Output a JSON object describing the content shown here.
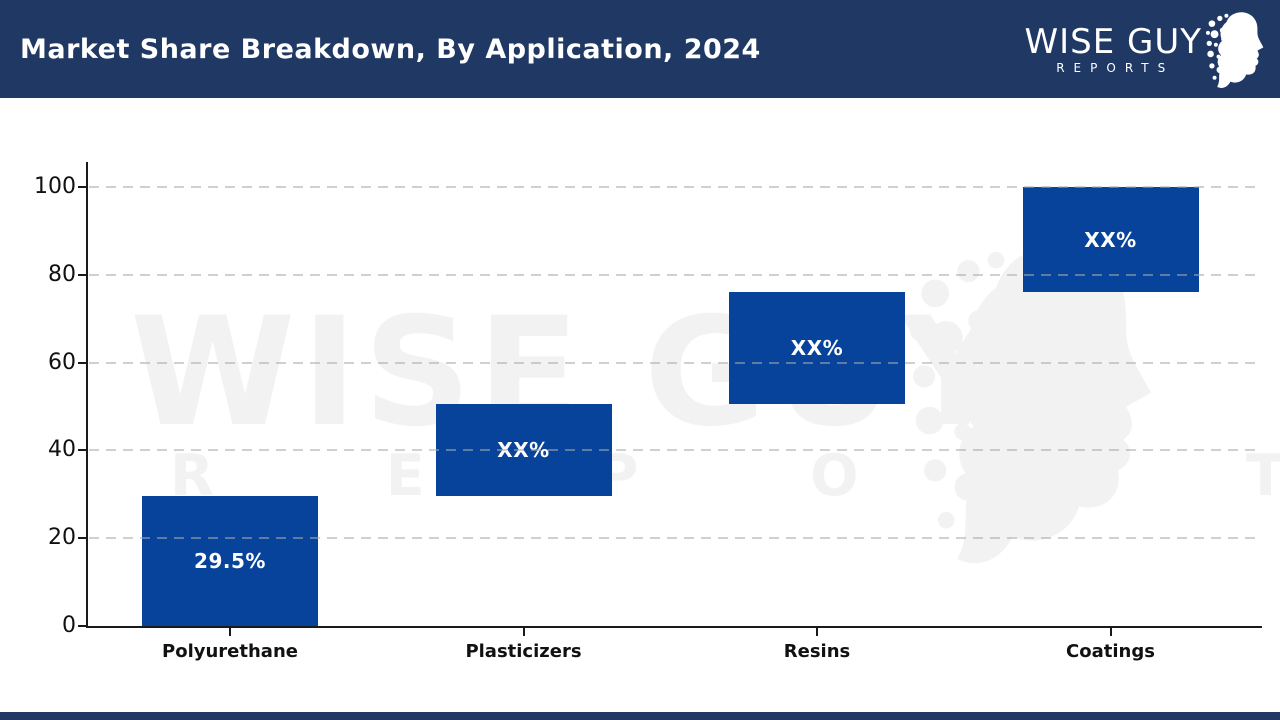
{
  "header": {
    "title": "Market Share Breakdown, By Application, 2024",
    "logo": {
      "line1": "WISE GUY",
      "line2": "REPORTS"
    }
  },
  "watermark": {
    "line1": "WISE GUY",
    "line2": "R E P O R T S"
  },
  "chart_data": {
    "type": "bar",
    "subtype": "waterfall-floating-bars",
    "title": "Market Share Breakdown, By Application, 2024",
    "categories": [
      "Polyurethane",
      "Plasticizers",
      "Resins",
      "Coatings"
    ],
    "segments": [
      {
        "category": "Polyurethane",
        "base": 0,
        "top": 29.5,
        "label": "29.5%"
      },
      {
        "category": "Plasticizers",
        "base": 29.5,
        "top": 50.5,
        "label": "XX%"
      },
      {
        "category": "Resins",
        "base": 50.5,
        "top": 76,
        "label": "XX%"
      },
      {
        "category": "Coatings",
        "base": 76,
        "top": 100,
        "label": "XX%"
      }
    ],
    "yticks": [
      0,
      20,
      40,
      60,
      80,
      100
    ],
    "ylim": [
      0,
      105
    ],
    "xlabel": "",
    "ylabel": "",
    "grid": "dashed horizontal, light gray",
    "legend": "none"
  },
  "colors": {
    "header_bg": "#1f3864",
    "bar": "#08439b",
    "grid": "#d4d4d4",
    "axis": "#1a1a1a",
    "watermark": "#f2f2f2",
    "bar_label": "#ffffff"
  }
}
